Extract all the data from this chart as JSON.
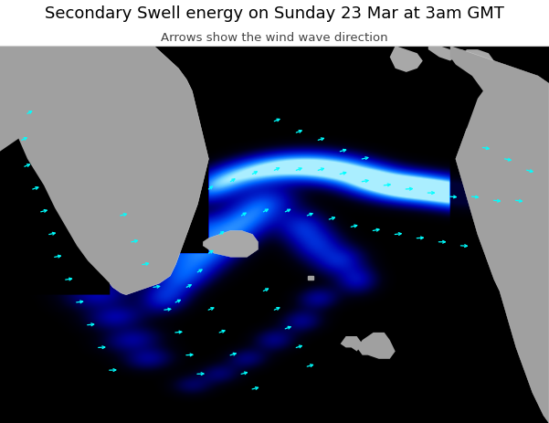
{
  "title": "Secondary Swell energy on Sunday 23 Mar at 3am GMT",
  "subtitle": "Arrows show the wind wave direction",
  "title_fontsize": 13,
  "subtitle_fontsize": 9.5,
  "title_color": "#000000",
  "subtitle_color": "#444444",
  "header_bg": "#ffffff",
  "fig_width": 6.01,
  "fig_height": 4.63,
  "dpi": 100,
  "arrow_color": "#00ffff"
}
